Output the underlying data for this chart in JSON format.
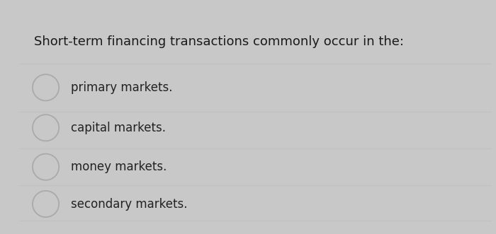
{
  "title": "Short-term financing transactions commonly occur in the:",
  "options": [
    "primary markets.",
    "capital markets.",
    "money markets.",
    "secondary markets."
  ],
  "bg_color": "#c8c8c8",
  "panel_color": "#ebebeb",
  "title_color": "#1a1a1a",
  "option_color": "#222222",
  "line_color": "#c0c0c0",
  "circle_edge_color": "#aaaaaa",
  "title_fontsize": 13.0,
  "option_fontsize": 12.0,
  "figwidth": 7.0,
  "figheight": 3.31,
  "dpi": 100
}
